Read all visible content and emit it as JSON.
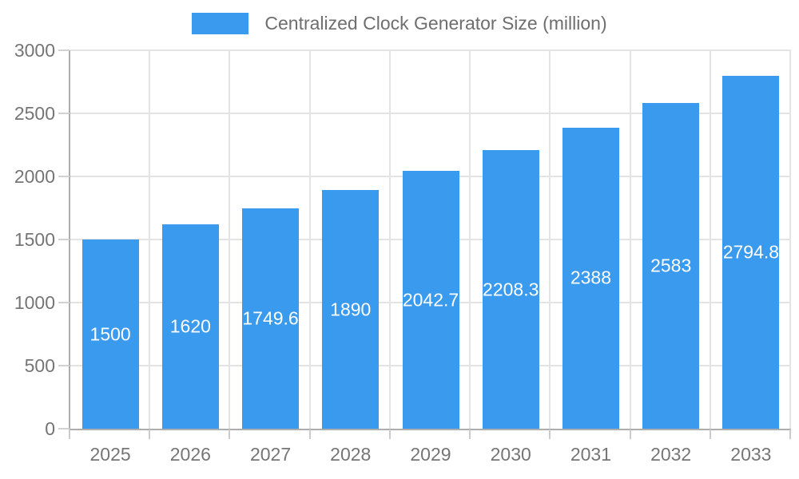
{
  "chart_data": {
    "type": "bar",
    "title": "Centralized Clock Generator Size (million)",
    "categories": [
      "2025",
      "2026",
      "2027",
      "2028",
      "2029",
      "2030",
      "2031",
      "2032",
      "2033"
    ],
    "values": [
      1500,
      1620,
      1749.6,
      1890,
      2042.7,
      2208.3,
      2388,
      2583,
      2794.8
    ],
    "ylim": [
      0,
      3000
    ],
    "yticks": [
      0,
      500,
      1000,
      1500,
      2000,
      2500,
      3000
    ],
    "grid": true,
    "legend_position": "top-center",
    "value_labels": "inside-center",
    "colors": {
      "bar": "#3a9aee",
      "bar_label": "#ffffff",
      "axis_text": "#757575",
      "legend_text": "#6e6e6e",
      "gridline": "#e3e3e3",
      "axis_line": "#adadad"
    }
  }
}
